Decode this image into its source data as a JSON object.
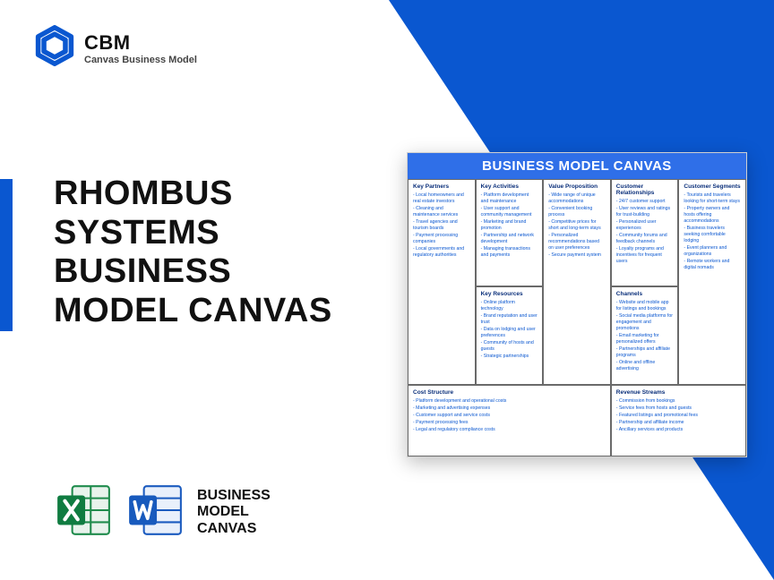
{
  "colors": {
    "brand": "#0a57d0",
    "header": "#2f6fe8",
    "text": "#111111",
    "cell_heading": "#0a2f7a",
    "cell_text": "#0a57d0"
  },
  "logo": {
    "title": "CBM",
    "subtitle": "Canvas Business Model"
  },
  "title": "RHOMBUS SYSTEMS BUSINESS MODEL CANVAS",
  "footer_caption": "BUSINESS MODEL CANVAS",
  "canvas": {
    "header": "BUSINESS MODEL CANVAS",
    "key_partners": {
      "title": "Key Partners",
      "items": [
        "Local homeowners and real estate investors",
        "Cleaning and maintenance services",
        "Travel agencies and tourism boards",
        "Payment processing companies",
        "Local governments and regulatory authorities"
      ]
    },
    "key_activities": {
      "title": "Key Activities",
      "items": [
        "Platform development and maintenance",
        "User support and community management",
        "Marketing and brand promotion",
        "Partnership and network development",
        "Managing transactions and payments"
      ]
    },
    "key_resources": {
      "title": "Key Resources",
      "items": [
        "Online platform technology",
        "Brand reputation and user trust",
        "Data on lodging and user preferences",
        "Community of hosts and guests",
        "Strategic partnerships"
      ]
    },
    "value_proposition": {
      "title": "Value Proposition",
      "items": [
        "Wide range of unique accommodations",
        "Convenient booking process",
        "Competitive prices for short and long-term stays",
        "Personalized recommendations based on user preferences",
        "Secure payment system"
      ]
    },
    "customer_relationships": {
      "title": "Customer Relationships",
      "items": [
        "24/7 customer support",
        "User reviews and ratings for trust-building",
        "Personalized user experiences",
        "Community forums and feedback channels",
        "Loyalty programs and incentives for frequent users"
      ]
    },
    "channels": {
      "title": "Channels",
      "items": [
        "Website and mobile app for listings and bookings",
        "Social media platforms for engagement and promotions",
        "Email marketing for personalized offers",
        "Partnerships and affiliate programs",
        "Online and offline advertising"
      ]
    },
    "customer_segments": {
      "title": "Customer Segments",
      "items": [
        "Tourists and travelers looking for short-term stays",
        "Property owners and hosts offering accommodations",
        "Business travelers seeking comfortable lodging",
        "Event planners and organizations",
        "Remote workers and digital nomads"
      ]
    },
    "cost_structure": {
      "title": "Cost Structure",
      "items": [
        "Platform development and operational costs",
        "Marketing and advertising expenses",
        "Customer support and service costs",
        "Payment processing fees",
        "Legal and regulatory compliance costs"
      ]
    },
    "revenue_streams": {
      "title": "Revenue Streams",
      "items": [
        "Commission from bookings",
        "Service fees from hosts and guests",
        "Featured listings and promotional fees",
        "Partnership and affiliate income",
        "Ancillary services and products"
      ]
    }
  }
}
